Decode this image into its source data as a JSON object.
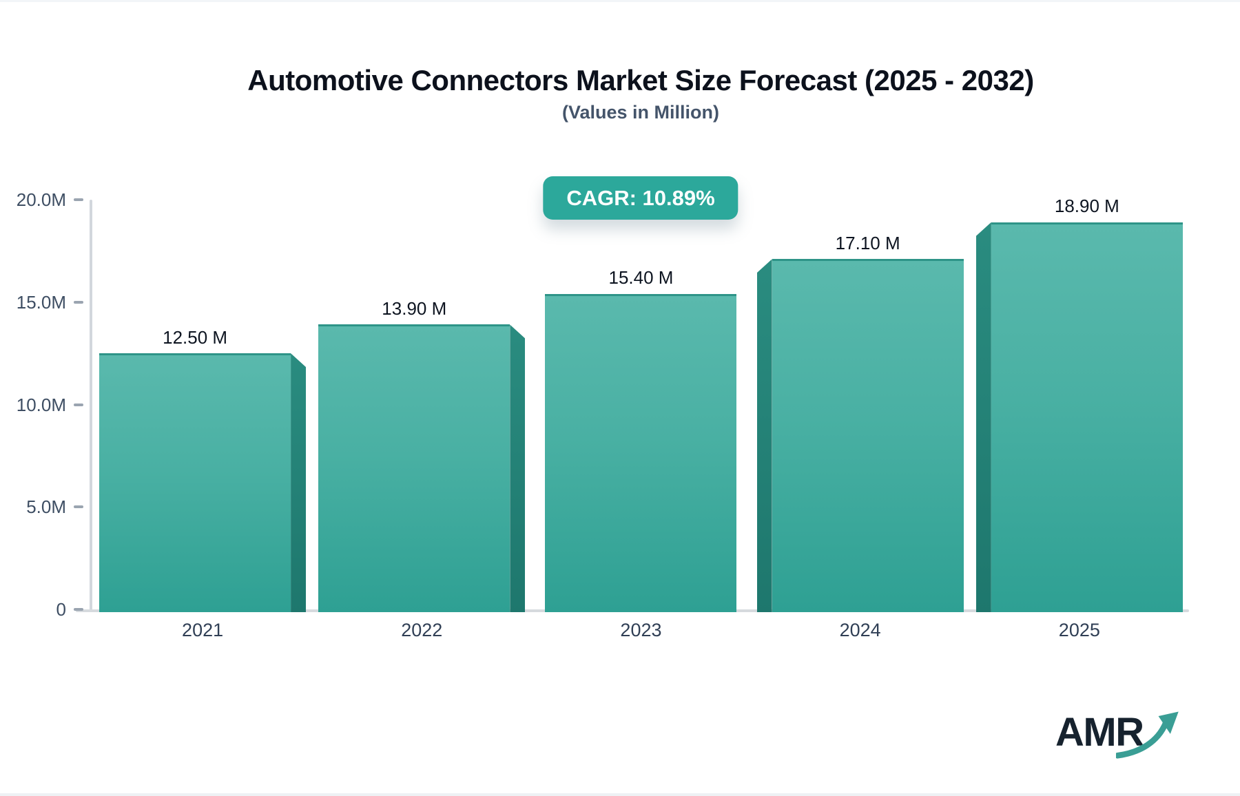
{
  "header": {
    "title": "Automotive Connectors Market Size Forecast (2025 - 2032)",
    "subtitle": "(Values in Million)",
    "cagr_badge": "CAGR: 10.89%"
  },
  "chart_data": {
    "type": "bar",
    "title": "Automotive Connectors Market Size Forecast (2025 - 2032)",
    "subtitle": "(Values in Million)",
    "annotation": "CAGR: 10.89%",
    "categories": [
      "2021",
      "2022",
      "2023",
      "2024",
      "2025"
    ],
    "values": [
      12.5,
      13.9,
      15.4,
      17.1,
      18.9
    ],
    "bar_labels": [
      "12.50 M",
      "13.90 M",
      "15.40 M",
      "17.10 M",
      "18.90 M"
    ],
    "unit": "Million",
    "xlabel": "",
    "ylabel": "",
    "ylim": [
      0,
      20
    ],
    "yticks": [
      {
        "value": 0,
        "label": "0"
      },
      {
        "value": 5,
        "label": "5.0M"
      },
      {
        "value": 10,
        "label": "10.0M"
      },
      {
        "value": 15,
        "label": "15.0M"
      },
      {
        "value": 20,
        "label": "20.0M"
      }
    ],
    "grid": false,
    "legend": null,
    "bar_style": "3d-extruded, extrusion faces toward center bar"
  },
  "colors": {
    "bar_face_top": "#5ab9ad",
    "bar_face_bottom": "#2ea093",
    "bar_top_edge": "#2e9488",
    "bar_side_shade": "#1e776d",
    "badge_background": "#2ca89b",
    "badge_text": "#ffffff",
    "axis_line": "#d2d7dd",
    "tick_dash": "#9aa4b0",
    "axis_label": "#3e4e63",
    "title_text": "#0c111c",
    "logo_text": "#16222e",
    "logo_swoosh": "#3a9e95"
  },
  "logo": {
    "text": "AMR"
  }
}
